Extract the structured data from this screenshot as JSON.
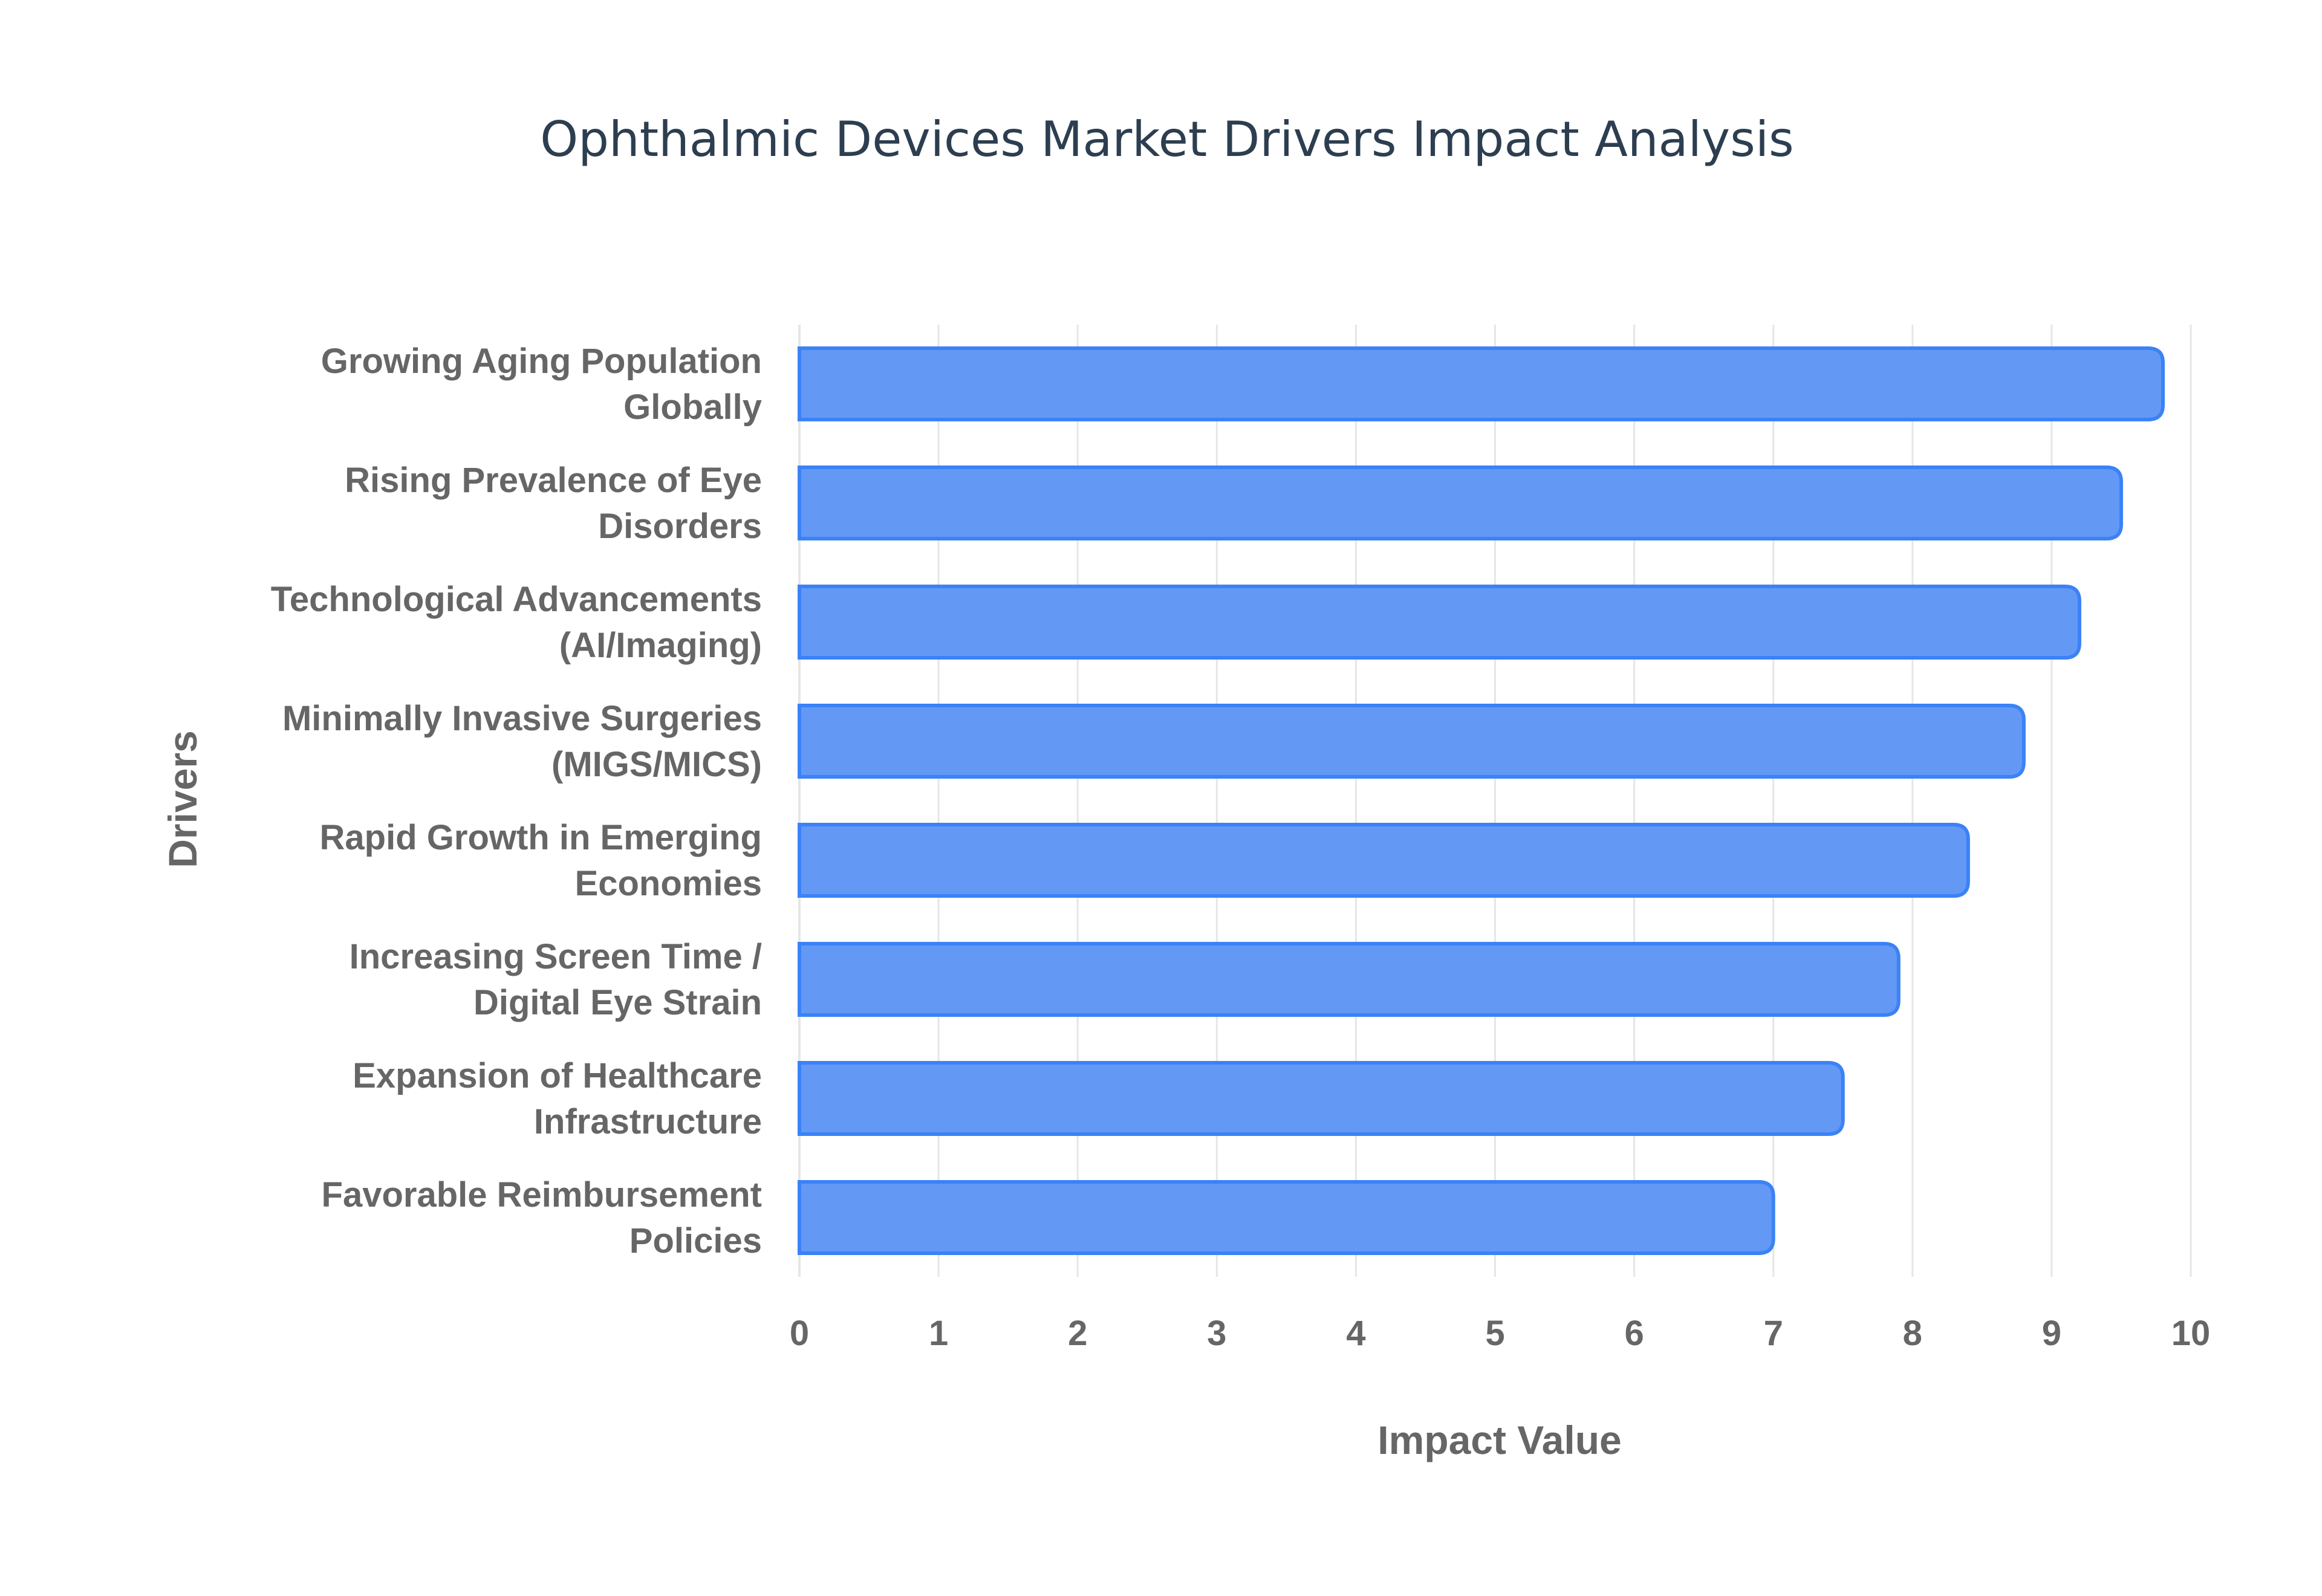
{
  "chart_data": {
    "type": "bar",
    "orientation": "horizontal",
    "title": "Ophthalmic Devices Market Drivers Impact Analysis",
    "xlabel": "Impact Value",
    "ylabel": "Drivers",
    "xlim": [
      0,
      10
    ],
    "xticks": [
      "0",
      "1",
      "2",
      "3",
      "4",
      "5",
      "6",
      "7",
      "8",
      "9",
      "10"
    ],
    "grid": true,
    "categories": [
      [
        "Growing Aging Population",
        "Globally"
      ],
      [
        "Rising Prevalence of Eye",
        "Disorders"
      ],
      [
        "Technological Advancements",
        "(AI/Imaging)"
      ],
      [
        "Minimally Invasive Surgeries",
        "(MIGS/MICS)"
      ],
      [
        "Rapid Growth in Emerging",
        "Economies"
      ],
      [
        "Increasing Screen Time /",
        "Digital Eye Strain"
      ],
      [
        "Expansion of Healthcare",
        "Infrastructure"
      ],
      [
        "Favorable Reimbursement",
        "Policies"
      ]
    ],
    "values": [
      9.8,
      9.5,
      9.2,
      8.8,
      8.4,
      7.9,
      7.5,
      7.0
    ],
    "colors": {
      "fill": "#6399f5",
      "stroke": "#3b82f6",
      "grid": "#e6e6e6"
    }
  }
}
